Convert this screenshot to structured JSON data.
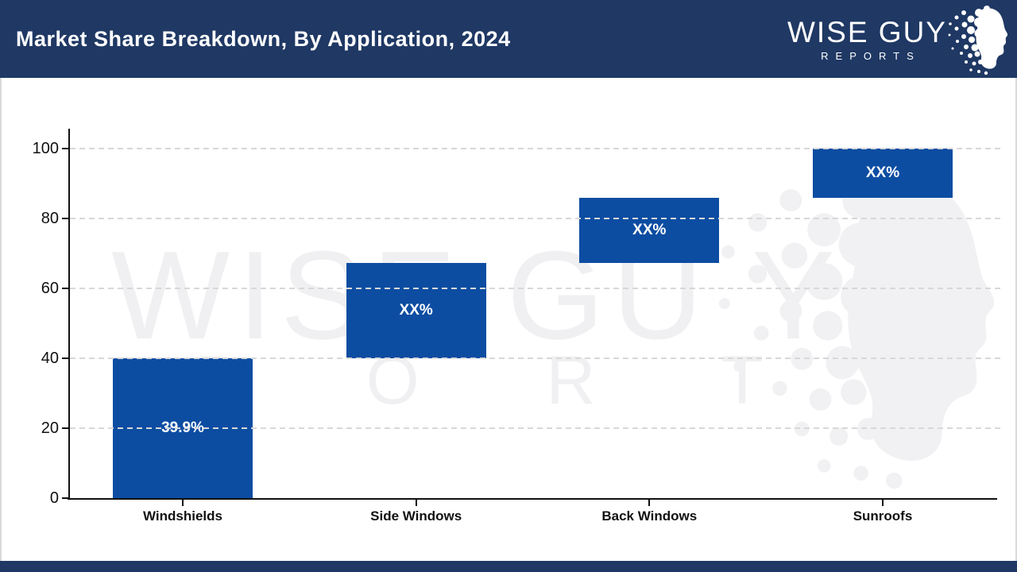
{
  "header": {
    "title": "Market Share Breakdown, By Application, 2024",
    "logo": {
      "line1": "WISE GUY",
      "line2": "REPORTS"
    }
  },
  "watermark": {
    "line1": "WISE GU Y",
    "line2": "P O R T S"
  },
  "colors": {
    "header_bg": "#1F3864",
    "footer_bg": "#1F3864",
    "bar": "#0C4DA2",
    "bar_label": "#ffffff",
    "gridline": "#d8d8d8",
    "watermark": "#f0f0f2"
  },
  "chart_data": {
    "type": "bar",
    "subtype": "waterfall",
    "title": "Market Share Breakdown, By Application, 2024",
    "xlabel": "",
    "ylabel": "",
    "ylim": [
      0,
      100
    ],
    "yticks": [
      0,
      20,
      40,
      60,
      80,
      100
    ],
    "grid": "horizontal-dashed-over-bars",
    "legend": "none",
    "categories": [
      "Windshields",
      "Side Windows",
      "Back Windows",
      "Sunroofs"
    ],
    "segments": [
      {
        "category": "Windshields",
        "start": 0,
        "end": 39.9,
        "size_est": 39.9,
        "label": "39.9%"
      },
      {
        "category": "Side Windows",
        "start": 39.9,
        "end": 67.3,
        "size_est": 27.4,
        "label": "XX%"
      },
      {
        "category": "Back Windows",
        "start": 67.3,
        "end": 85.9,
        "size_est": 18.6,
        "label": "XX%"
      },
      {
        "category": "Sunroofs",
        "start": 85.9,
        "end": 100,
        "size_est": 14.1,
        "label": "XX%"
      }
    ]
  }
}
